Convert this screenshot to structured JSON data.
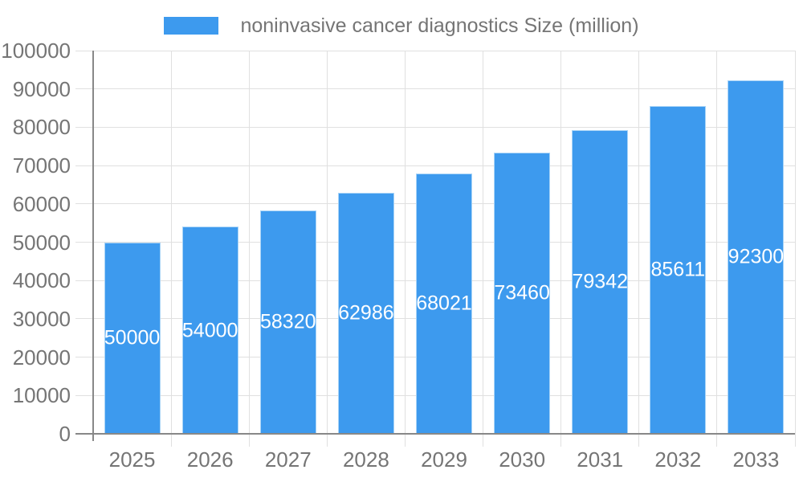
{
  "chart_data": {
    "type": "bar",
    "title": "noninvasive cancer diagnostics Size (million)",
    "categories": [
      "2025",
      "2026",
      "2027",
      "2028",
      "2029",
      "2030",
      "2031",
      "2032",
      "2033"
    ],
    "values": [
      50000,
      54000,
      58320,
      62986,
      68021,
      73460,
      79342,
      85611,
      92300
    ],
    "xlabel": "",
    "ylabel": "",
    "ylim": [
      0,
      100000
    ],
    "yticks": [
      0,
      10000,
      20000,
      30000,
      40000,
      50000,
      60000,
      70000,
      80000,
      90000,
      100000
    ],
    "grid": true,
    "legend_position": "top",
    "bar_value_labels_visible": true,
    "colors": {
      "bar": "#3d9aee",
      "bar_border": "#a9d4f7",
      "bar_label": "#ffffff",
      "axis_text": "#757575",
      "gridline": "#e0e0e0",
      "axis_line": "#888888",
      "background": "#ffffff"
    }
  }
}
